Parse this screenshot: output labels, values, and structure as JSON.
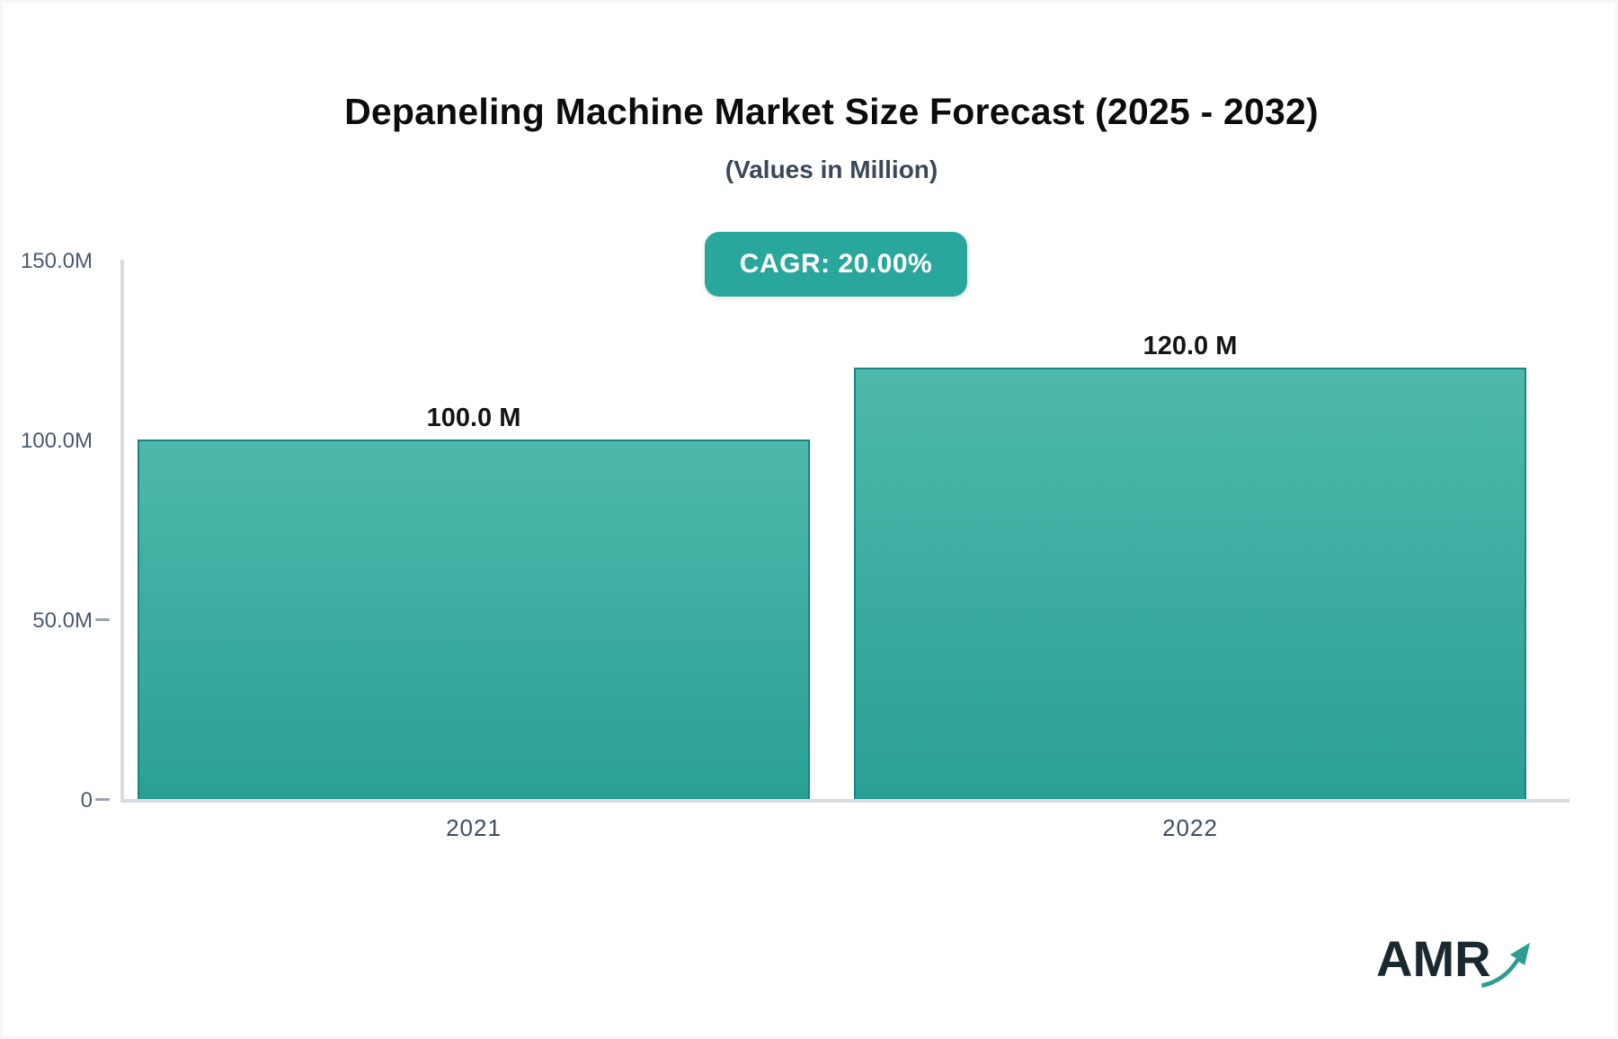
{
  "page": {
    "title": "Depaneling Machine Market Size Forecast (2025 - 2032)",
    "subtitle": "(Values in Million)",
    "cagr_badge": "CAGR: 20.00%"
  },
  "branding": {
    "logo_text": "AMR",
    "logo_arrow_icon": "trend-up-arrow",
    "logo_text_color": "#1a2930",
    "logo_arrow_color": "#2d9c93"
  },
  "colors": {
    "accent_teal": "#2aa79c",
    "bar_gradient_top": "#4fb8ac",
    "bar_gradient_bottom": "#2aa094",
    "bar_border": "#17867d",
    "axis_line": "#d9dbe0",
    "axis_label": "#4a5a6e"
  },
  "chart_data": {
    "type": "bar",
    "title": "Depaneling Machine Market Size Forecast (2025 - 2032)",
    "subtitle": "(Values in Million)",
    "categories": [
      "2021",
      "2022"
    ],
    "values": [
      100.0,
      120.0
    ],
    "value_labels": [
      "100.0 M",
      "120.0 M"
    ],
    "unit": "Million",
    "cagr": "20.00%",
    "ylim": [
      0,
      150
    ],
    "yticks": [
      {
        "value": 150,
        "label": "150.0M",
        "tick": false
      },
      {
        "value": 100,
        "label": "100.0M",
        "tick": false
      },
      {
        "value": 50,
        "label": "50.0M",
        "tick": true
      },
      {
        "value": 0,
        "label": "0",
        "tick": true
      }
    ],
    "legend": "none",
    "grid": false
  }
}
